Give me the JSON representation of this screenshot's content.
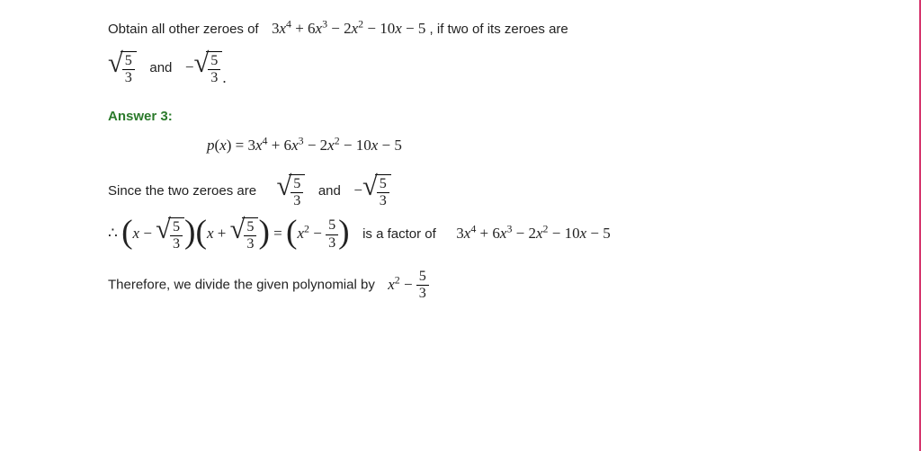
{
  "question": {
    "prefix": "Obtain all other zeroes of",
    "poly_html": "3<span class='math'>x</span><sup>4</sup> + 6<span class='math'>x</span><sup>3</sup> − 2<span class='math'>x</span><sup>2</sup> − 10<span class='math'>x</span> − 5",
    "suffix": ", if two of its zeroes are",
    "root_num": "5",
    "root_den": "3",
    "conj": "and",
    "period": "."
  },
  "answer_label": "Answer 3:",
  "px_def_lhs": "p(x) =",
  "px_def_rhs": "3x<sup>4</sup> + 6x<sup>3</sup> − 2x<sup>2</sup> − 10x − 5",
  "since_prefix": "Since the two zeroes are",
  "therefore_sym": "∴",
  "factor_text": "is a factor of",
  "factor_poly": "3x<sup>4</sup> + 6x<sup>3</sup> − 2x<sup>2</sup> − 10x − 5",
  "divide_text": "Therefore, we divide the given polynomial by",
  "divisor_num": "5",
  "divisor_den": "3"
}
